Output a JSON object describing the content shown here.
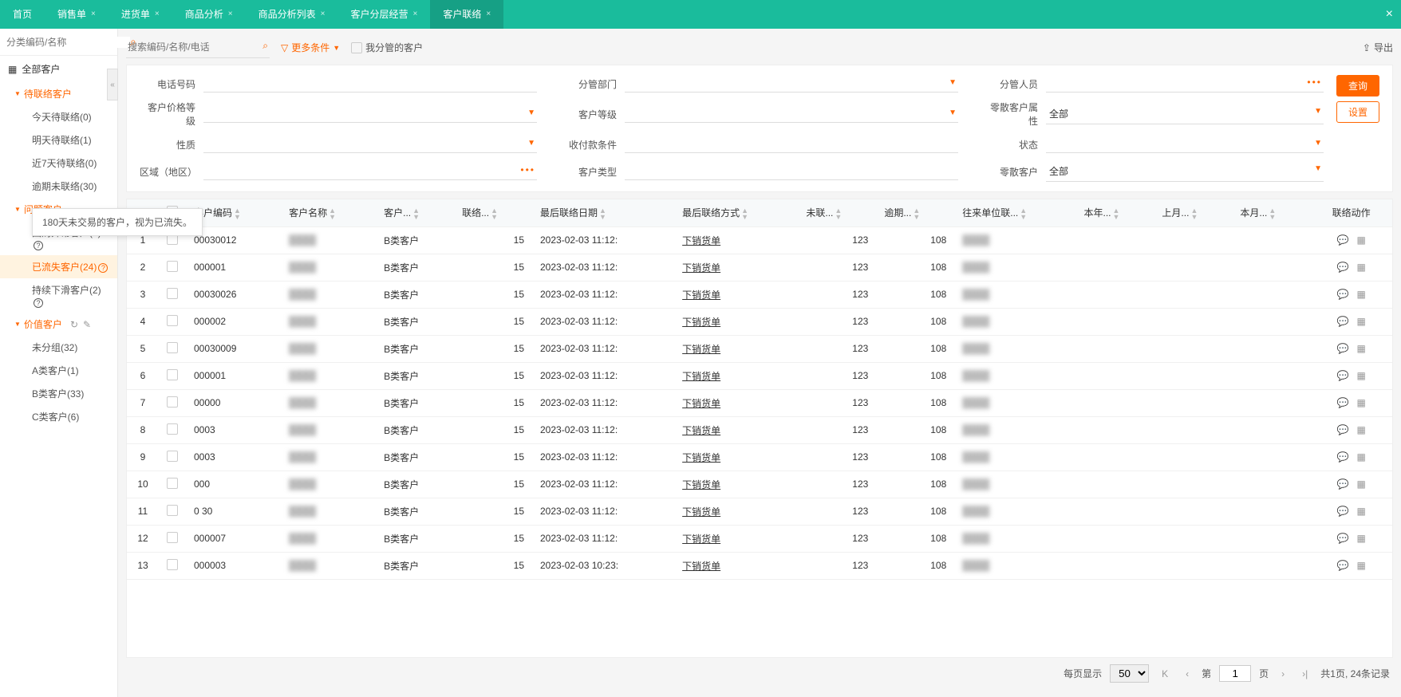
{
  "tabs": [
    {
      "label": "首页",
      "closable": false
    },
    {
      "label": "销售单",
      "closable": true
    },
    {
      "label": "进货单",
      "closable": true
    },
    {
      "label": "商品分析",
      "closable": true
    },
    {
      "label": "商品分析列表",
      "closable": true
    },
    {
      "label": "客户分层经营",
      "closable": true
    },
    {
      "label": "客户联络",
      "closable": true,
      "active": true
    }
  ],
  "sidebar": {
    "search_placeholder": "分类编码/名称",
    "root": "全部客户",
    "groups": [
      {
        "label": "待联络客户",
        "items": [
          {
            "label": "今天待联络(0)"
          },
          {
            "label": "明天待联络(1)"
          },
          {
            "label": "近7天待联络(0)"
          },
          {
            "label": "逾期未联络(30)"
          }
        ]
      },
      {
        "label": "问题客户",
        "items": [
          {
            "label": "回购异常客户(2)",
            "help": true
          },
          {
            "label": "已流失客户(24)",
            "help": true,
            "active": true
          },
          {
            "label": "持续下滑客户(2)",
            "help": true
          }
        ]
      },
      {
        "label": "价值客户",
        "actions": true,
        "items": [
          {
            "label": "未分组(32)"
          },
          {
            "label": "A类客户(1)"
          },
          {
            "label": "B类客户(33)"
          },
          {
            "label": "C类客户(6)"
          }
        ]
      }
    ],
    "tooltip": "180天未交易的客户，视为已流失。"
  },
  "toolbar": {
    "search_placeholder": "搜索编码/名称/电话",
    "more_conditions": "更多条件",
    "my_customers": "我分管的客户",
    "export": "导出"
  },
  "filters": {
    "rows": [
      [
        {
          "label": "电话号码",
          "type": "text"
        },
        {
          "label": "分管部门",
          "type": "select"
        },
        {
          "label": "分管人员",
          "type": "dots"
        }
      ],
      [
        {
          "label": "客户价格等级",
          "type": "select"
        },
        {
          "label": "客户等级",
          "type": "select"
        },
        {
          "label": "零散客户属性",
          "type": "select",
          "value": "全部"
        }
      ],
      [
        {
          "label": "性质",
          "type": "select"
        },
        {
          "label": "收付款条件",
          "type": "text"
        },
        {
          "label": "状态",
          "type": "select"
        }
      ],
      [
        {
          "label": "区域（地区）",
          "type": "dots"
        },
        {
          "label": "客户类型",
          "type": "text"
        },
        {
          "label": "零散客户",
          "type": "select",
          "value": "全部"
        }
      ]
    ],
    "query_btn": "查询",
    "settings_btn": "设置"
  },
  "table": {
    "columns": [
      "",
      "",
      "客户编码",
      "客户名称",
      "客户...",
      "联络...",
      "最后联络日期",
      "最后联络方式",
      "未联...",
      "逾期...",
      "往来单位联...",
      "本年...",
      "上月...",
      "本月...",
      "联络动作"
    ],
    "rows": [
      {
        "n": 1,
        "code": "00030012",
        "name": "",
        "type": "B类客户",
        "cnt": 15,
        "date": "2023-02-03 11:12:",
        "way": "下销货单",
        "v1": 123,
        "v2": 108,
        "unit": ""
      },
      {
        "n": 2,
        "code": "000001",
        "name": "",
        "type": "B类客户",
        "cnt": 15,
        "date": "2023-02-03 11:12:",
        "way": "下销货单",
        "v1": 123,
        "v2": 108,
        "unit": ""
      },
      {
        "n": 3,
        "code": "00030026",
        "name": "",
        "type": "B类客户",
        "cnt": 15,
        "date": "2023-02-03 11:12:",
        "way": "下销货单",
        "v1": 123,
        "v2": 108,
        "unit": ""
      },
      {
        "n": 4,
        "code": "000002",
        "name": "",
        "type": "B类客户",
        "cnt": 15,
        "date": "2023-02-03 11:12:",
        "way": "下销货单",
        "v1": 123,
        "v2": 108,
        "unit": ""
      },
      {
        "n": 5,
        "code": "00030009",
        "name": "",
        "type": "B类客户",
        "cnt": 15,
        "date": "2023-02-03 11:12:",
        "way": "下销货单",
        "v1": 123,
        "v2": 108,
        "unit": ""
      },
      {
        "n": 6,
        "code": "000001",
        "name": "",
        "type": "B类客户",
        "cnt": 15,
        "date": "2023-02-03 11:12:",
        "way": "下销货单",
        "v1": 123,
        "v2": 108,
        "unit": ""
      },
      {
        "n": 7,
        "code": "00000",
        "name": "",
        "type": "B类客户",
        "cnt": 15,
        "date": "2023-02-03 11:12:",
        "way": "下销货单",
        "v1": 123,
        "v2": 108,
        "unit": ""
      },
      {
        "n": 8,
        "code": "0003",
        "name": "",
        "type": "B类客户",
        "cnt": 15,
        "date": "2023-02-03 11:12:",
        "way": "下销货单",
        "v1": 123,
        "v2": 108,
        "unit": ""
      },
      {
        "n": 9,
        "code": "0003",
        "name": "",
        "type": "B类客户",
        "cnt": 15,
        "date": "2023-02-03 11:12:",
        "way": "下销货单",
        "v1": 123,
        "v2": 108,
        "unit": ""
      },
      {
        "n": 10,
        "code": "000",
        "name": "",
        "type": "B类客户",
        "cnt": 15,
        "date": "2023-02-03 11:12:",
        "way": "下销货单",
        "v1": 123,
        "v2": 108,
        "unit": ""
      },
      {
        "n": 11,
        "code": "0  30",
        "name": "",
        "type": "B类客户",
        "cnt": 15,
        "date": "2023-02-03 11:12:",
        "way": "下销货单",
        "v1": 123,
        "v2": 108,
        "unit": ""
      },
      {
        "n": 12,
        "code": "000007",
        "name": "",
        "type": "B类客户",
        "cnt": 15,
        "date": "2023-02-03 11:12:",
        "way": "下销货单",
        "v1": 123,
        "v2": 108,
        "unit": ""
      },
      {
        "n": 13,
        "code": "000003",
        "name": "",
        "type": "B类客户",
        "cnt": 15,
        "date": "2023-02-03 10:23:",
        "way": "下销货单",
        "v1": 123,
        "v2": 108,
        "unit": ""
      }
    ]
  },
  "pager": {
    "per_page_label": "每页显示",
    "per_page": "50",
    "page_prefix": "第",
    "page": "1",
    "page_suffix": "页",
    "summary": "共1页, 24条记录"
  },
  "colors": {
    "primary": "#1abc9c",
    "accent": "#ff6600"
  }
}
